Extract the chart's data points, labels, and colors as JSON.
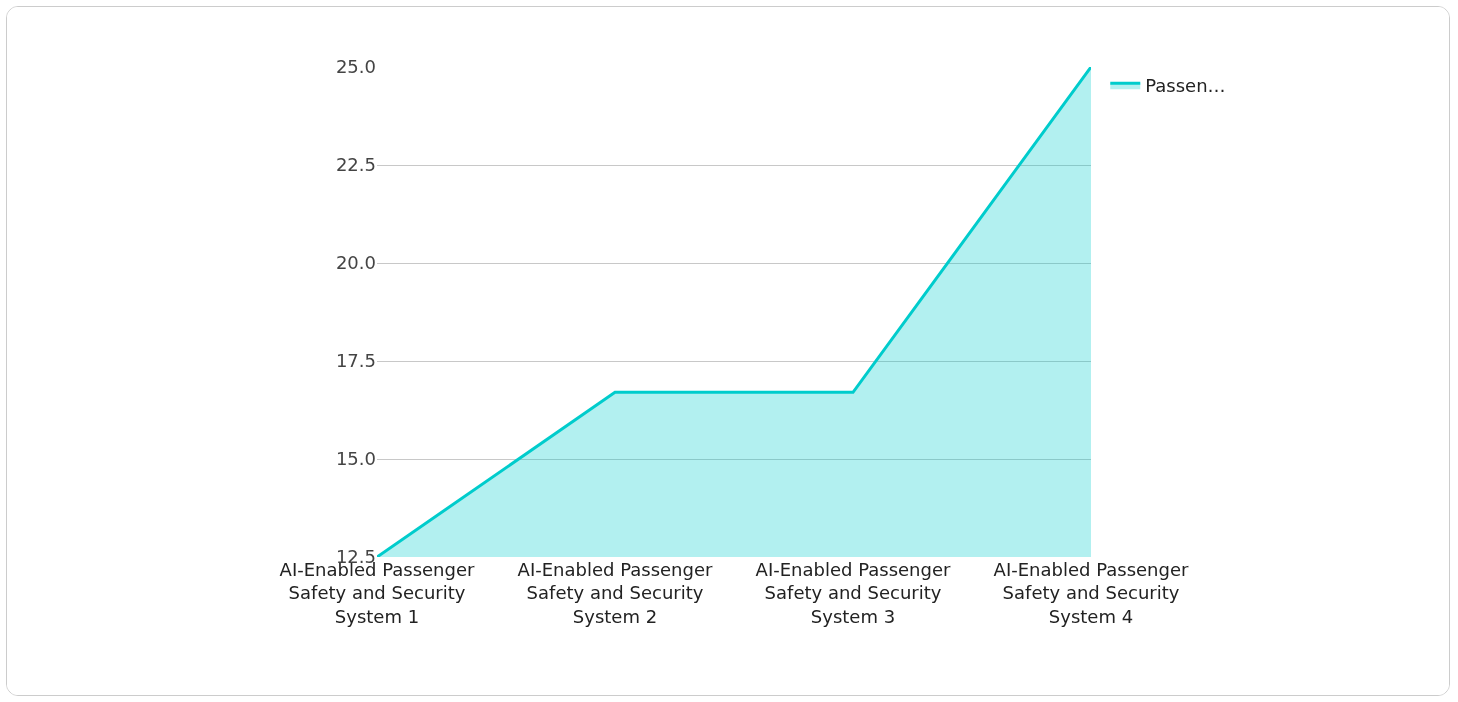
{
  "chart_data": {
    "type": "area",
    "categories": [
      "AI-Enabled Passenger Safety and Security System 1",
      "AI-Enabled Passenger Safety and Security System 2",
      "AI-Enabled Passenger Safety and Security System 3",
      "AI-Enabled Passenger Safety and Security System 4"
    ],
    "series": [
      {
        "name": "Passen…",
        "color": "#00cccc",
        "values": [
          12.5,
          16.7,
          16.7,
          25
        ]
      }
    ],
    "ylim": [
      12.5,
      25
    ],
    "yticks": [
      {
        "value": 12.5,
        "label": "12.5"
      },
      {
        "value": 15,
        "label": "15.0"
      },
      {
        "value": 17.5,
        "label": "17.5"
      },
      {
        "value": 20,
        "label": "20.0"
      },
      {
        "value": 22.5,
        "label": "22.5"
      },
      {
        "value": 25,
        "label": "25.0"
      }
    ],
    "grid": "y",
    "legend": "top right"
  }
}
